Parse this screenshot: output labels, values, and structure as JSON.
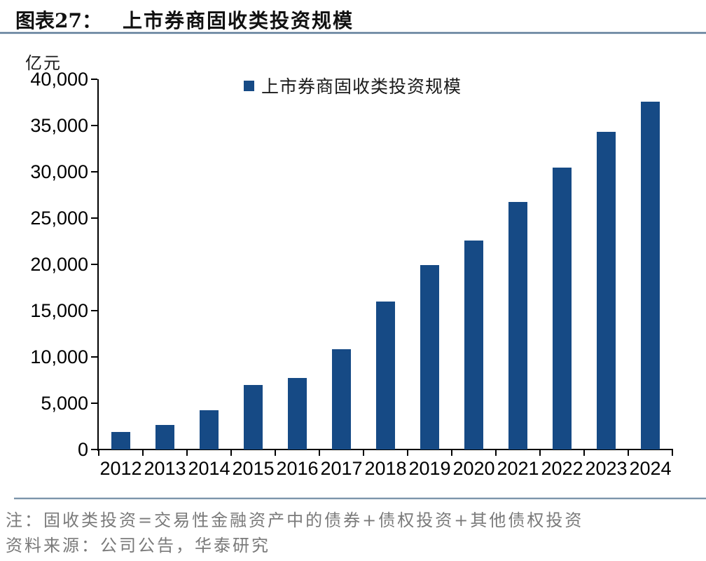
{
  "header": {
    "label": "图表27：",
    "title": "上市券商固收类投资规模"
  },
  "chart_data": {
    "type": "bar",
    "title": "上市券商固收类投资规模",
    "unit_label": "亿元",
    "legend": [
      {
        "label": "上市券商固收类投资规模",
        "color": "#164A85"
      }
    ],
    "legend_position": "top-center",
    "categories": [
      "2012",
      "2013",
      "2014",
      "2015",
      "2016",
      "2017",
      "2018",
      "2019",
      "2020",
      "2021",
      "2022",
      "2023",
      "2024"
    ],
    "values": [
      1900,
      2650,
      4250,
      6950,
      7700,
      10800,
      16000,
      19950,
      22600,
      26750,
      30450,
      34300,
      37600
    ],
    "ylim": [
      0,
      40000
    ],
    "ytick_step": 5000,
    "ytick_labels": [
      "0",
      "5,000",
      "10,000",
      "15,000",
      "20,000",
      "25,000",
      "30,000",
      "35,000",
      "40,000"
    ],
    "grid": false,
    "bar_color": "#164A85"
  },
  "footer": {
    "note": "注：固收类投资=交易性金融资产中的债券+债权投资+其他债权投资",
    "source": "资料来源：公司公告，华泰研究"
  },
  "colors": {
    "bar": "#164A85",
    "rule_blue": "#5f7d99",
    "note_rule": "#7d95ab",
    "axis": "#000000",
    "note_text": "#7a7a7a"
  }
}
